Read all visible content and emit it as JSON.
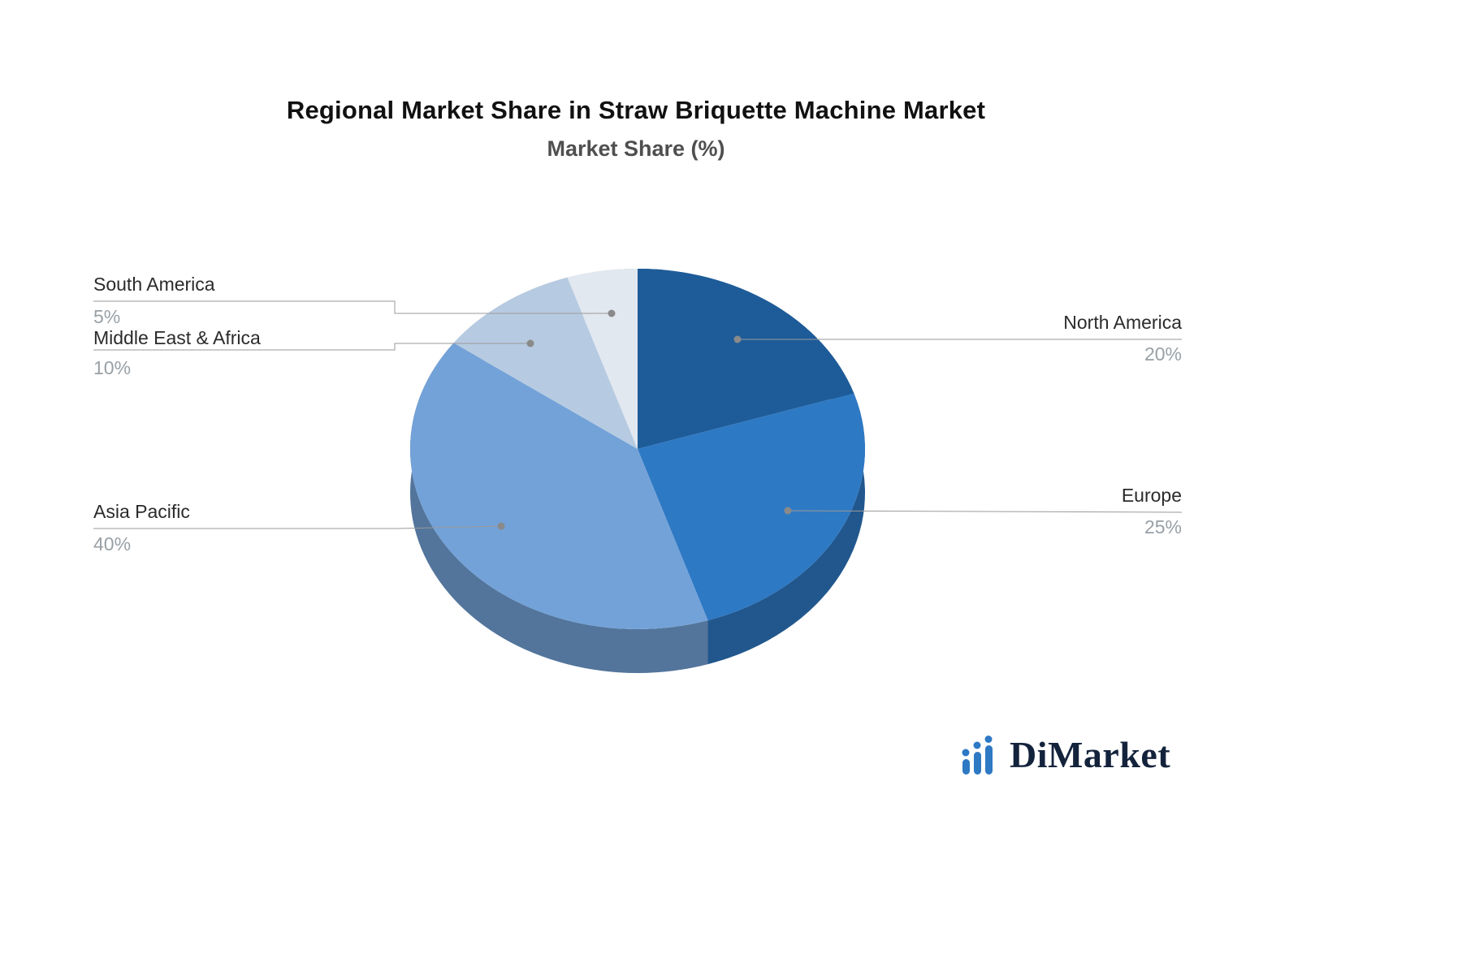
{
  "logo": {
    "text": "DiMarket"
  },
  "chart_data": {
    "type": "pie",
    "title": "Regional Market Share in Straw Briquette Machine Market",
    "subtitle": "Market Share (%)",
    "unit": "%",
    "direction": "clockwise",
    "start": "top",
    "effect": "3d",
    "slices": [
      {
        "label": "North America",
        "value": 20,
        "color": "#1e5c99"
      },
      {
        "label": "Europe",
        "value": 25,
        "color": "#2e79c4"
      },
      {
        "label": "Asia Pacific",
        "value": 40,
        "color": "#73a2d8"
      },
      {
        "label": "Middle East & Africa",
        "value": 10,
        "color": "#b6cbe2"
      },
      {
        "label": "South America",
        "value": 5,
        "color": "#e2e8f0"
      }
    ],
    "label_color": "#2b2b2b",
    "value_color": "#98a0a6",
    "leader_line_color": "#9a9a9a",
    "leader_dot_color": "#8a8a8a"
  }
}
